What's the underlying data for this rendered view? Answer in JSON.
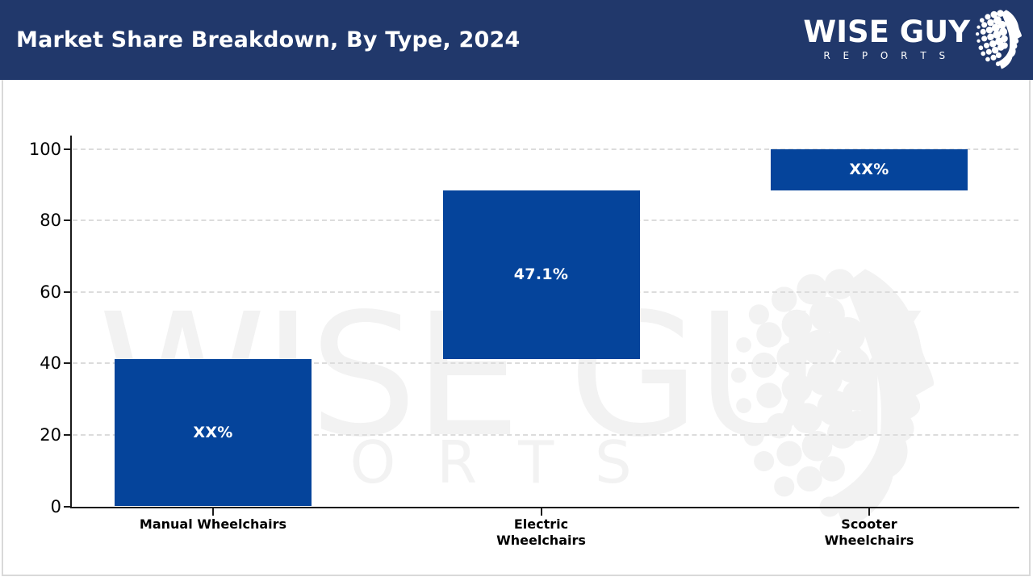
{
  "header": {
    "title": "Market Share Breakdown, By Type, 2024",
    "logo": {
      "line1": "WISE GUY",
      "line2": "R E P O R T S"
    }
  },
  "watermark": {
    "line1": "WISE GUY",
    "line2": "R E P O R T S"
  },
  "chart_data": {
    "type": "bar",
    "subtype": "stacked-waterfall",
    "title": "Market Share Breakdown, By Type, 2024",
    "categories": [
      "Manual Wheelchairs",
      "Electric\nWheelchairs",
      "Scooter\nWheelchairs"
    ],
    "segments": [
      {
        "category": "Manual Wheelchairs",
        "start": 0,
        "end": 41.3,
        "label": "XX%"
      },
      {
        "category": "Electric Wheelchairs",
        "start": 41.3,
        "end": 88.4,
        "label": "47.1%"
      },
      {
        "category": "Scooter Wheelchairs",
        "start": 88.4,
        "end": 100,
        "label": "XX%"
      }
    ],
    "ylim": [
      0,
      100
    ],
    "yticks": [
      0,
      20,
      40,
      60,
      80,
      100
    ],
    "grid": "horizontal-dashed",
    "legend": "none"
  },
  "colors": {
    "header_bg": "#21386B",
    "bar": "#05449B",
    "bar_label": "#ffffff",
    "axis": "#1a1a1a",
    "gridline": "#dcdcdc",
    "watermark": "#f2f2f2",
    "border": "#d9d9d9"
  }
}
